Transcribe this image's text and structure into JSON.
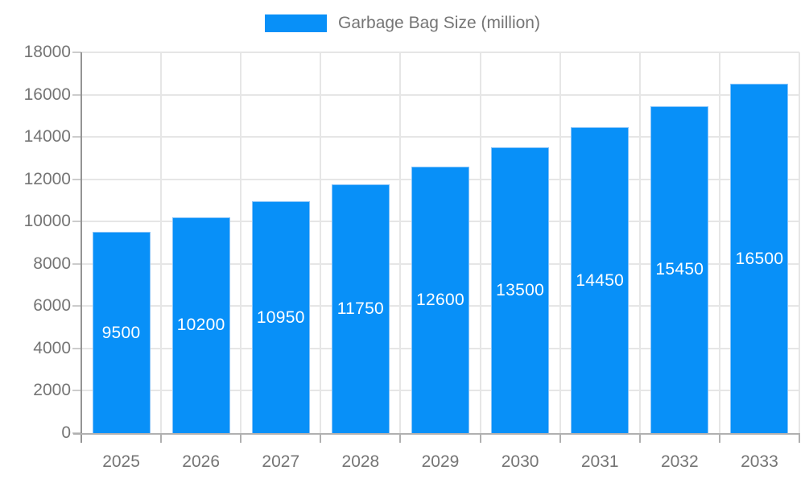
{
  "page": {
    "background": "#ffffff"
  },
  "legend": {
    "label": "Garbage Bag Size (million)",
    "swatch_color": "#0890f8"
  },
  "chart_data": {
    "type": "bar",
    "title": "Garbage Bag Size (million)",
    "categories": [
      "2025",
      "2026",
      "2027",
      "2028",
      "2029",
      "2030",
      "2031",
      "2032",
      "2033"
    ],
    "values": [
      9500,
      10200,
      10950,
      11750,
      12600,
      13500,
      14450,
      15450,
      16500
    ],
    "series": [
      {
        "name": "Garbage Bag Size (million)",
        "values": [
          9500,
          10200,
          10950,
          11750,
          12600,
          13500,
          14450,
          15450,
          16500
        ]
      }
    ],
    "xlabel": "",
    "ylabel": "",
    "ylim": [
      0,
      18000
    ],
    "yticks": [
      0,
      2000,
      4000,
      6000,
      8000,
      10000,
      12000,
      14000,
      16000,
      18000
    ],
    "grid": true,
    "legend_position": "top",
    "bar_labels_shown": true,
    "bar_color": "#0890f8",
    "bar_label_color": "#ffffff",
    "axis_text_color": "#757575",
    "grid_color": "#e6e6e6",
    "y_tick_color": "#cccccc",
    "y_axis_line_color": "#949494",
    "x_axis_line_color": "#b0b0b0",
    "background": "#ffffff"
  }
}
